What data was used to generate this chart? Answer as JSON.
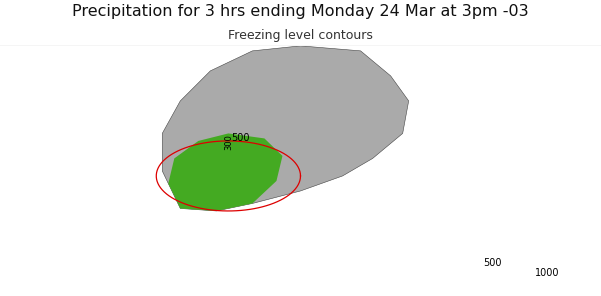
{
  "title": "Precipitation for 3 hrs ending Monday 24 Mar at 3pm -03",
  "subtitle": "Freezing level contours",
  "title_fontsize": 11.5,
  "subtitle_fontsize": 9,
  "ocean_color": "#cdd4e8",
  "land_color": "#a0a0a0",
  "greenland_outer_color": "#999999",
  "greenland_ice_color": "#c8c8c8",
  "canada_color": "#999999",
  "precip_green": "#44aa22",
  "red_contour": "#dd0000",
  "header_bg": "#f2f2f2",
  "header_border": "#cccccc"
}
